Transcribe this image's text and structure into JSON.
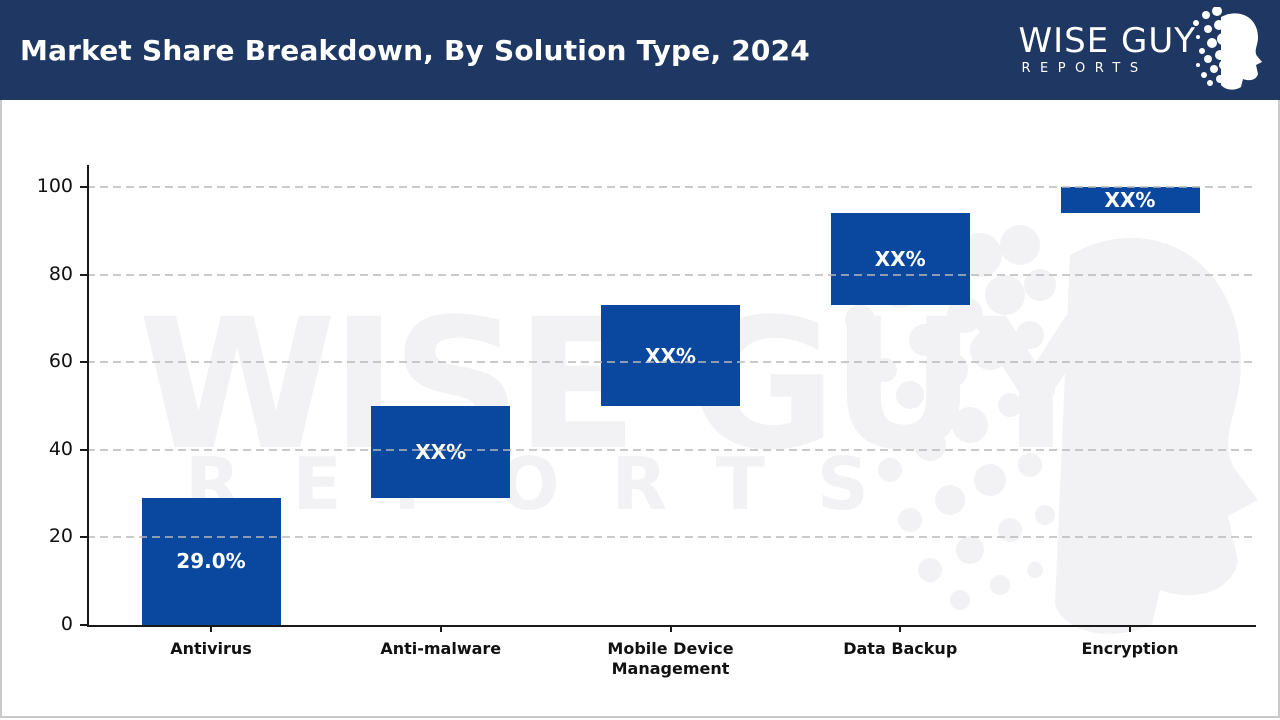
{
  "header": {
    "title": "Market Share Breakdown, By Solution Type, 2024",
    "brand_line1": "WISE GUY",
    "brand_line2": "REPORTS"
  },
  "watermark": {
    "line1": "WISE GUY",
    "line2": "REPORTS"
  },
  "colors": {
    "header_bg": "#1f3863",
    "bar": "#09489e",
    "grid": "#bcbcbc",
    "axis": "#1a1a1a",
    "watermark": "#f2f2f4"
  },
  "chart_data": {
    "type": "bar",
    "subtype": "waterfall",
    "title": "Market Share Breakdown, By Solution Type, 2024",
    "xlabel": "",
    "ylabel": "",
    "categories": [
      "Antivirus",
      "Anti-malware",
      "Mobile Device\nManagement",
      "Data Backup",
      "Encryption"
    ],
    "segments": [
      {
        "category": "Antivirus",
        "start": 0,
        "end": 29,
        "label": "29.0%"
      },
      {
        "category": "Anti-malware",
        "start": 29,
        "end": 50,
        "label": "XX%"
      },
      {
        "category": "Mobile Device Management",
        "start": 50,
        "end": 73,
        "label": "XX%"
      },
      {
        "category": "Data Backup",
        "start": 73,
        "end": 94,
        "label": "XX%"
      },
      {
        "category": "Encryption",
        "start": 94,
        "end": 100,
        "label": "XX%"
      }
    ],
    "yticks": [
      0,
      20,
      40,
      60,
      80,
      100
    ],
    "ylim": [
      0,
      105
    ],
    "grid": true,
    "grid_style": "dashed",
    "legend": "none"
  }
}
